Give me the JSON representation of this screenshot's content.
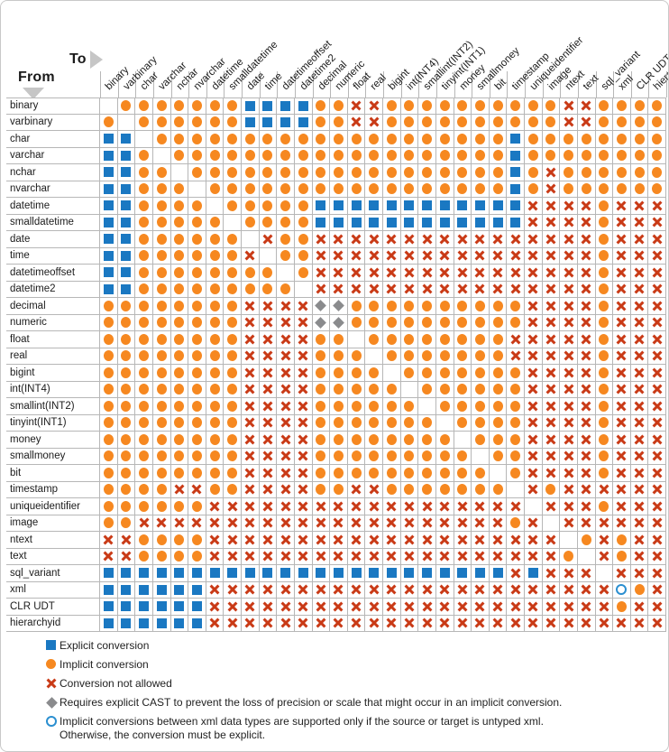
{
  "header": {
    "to_label": "To",
    "from_label": "From",
    "columns": [
      "binary",
      "varbinary",
      "char",
      "varchar",
      "nchar",
      "nvarchar",
      "datetime",
      "smalldatetime",
      "date",
      "time",
      "datetimeoffset",
      "datetime2",
      "decimal",
      "numeric",
      "float",
      "real",
      "bigint",
      "int(INT4)",
      "smallint(INT2)",
      "tinyint(INT1)",
      "money",
      "smallmoney",
      "bit",
      "timestamp",
      "uniqueidentifier",
      "image",
      "ntext",
      "text",
      "sql_variant",
      "xml",
      "CLR UDT",
      "hierarchyid"
    ]
  },
  "matrix": {
    "code_meaning": {
      "E": "explicit conversion",
      "I": "implicit conversion",
      "X": "conversion not allowed",
      "D": "requires explicit CAST",
      "O": "implicit only if untyped xml",
      ".": "same type (blank)"
    },
    "rows": [
      {
        "from": "binary",
        "cells": ".IIIIIIIEEEEIIXXIIIIIIIIIIXXIIII"
      },
      {
        "from": "varbinary",
        "cells": "I.IIIIIIEEEEIIXXIIIIIIIIIIXXIIII"
      },
      {
        "from": "char",
        "cells": "EE.IIIIIIIIIIIIIIIIIIIIEIIIIIIII"
      },
      {
        "from": "varchar",
        "cells": "EEI.IIIIIIIIIIIIIIIIIIIEIIIIIIII"
      },
      {
        "from": "nchar",
        "cells": "EEII.IIIIIIIIIIIIIIIIIIEIXIIIIII"
      },
      {
        "from": "nvarchar",
        "cells": "EEIII.IIIIIIIIIIIIIIIIIEIXIIIIII"
      },
      {
        "from": "datetime",
        "cells": "EEIIII.IIIIIEEEEEEEEEEEEXXXXIXXX"
      },
      {
        "from": "smalldatetime",
        "cells": "EEIIIII.IIIIEEEEEEEEEEEEXXXXIXXX"
      },
      {
        "from": "date",
        "cells": "EEIIIIII.XIIXXXXXXXXXXXXXXXXIXXX"
      },
      {
        "from": "time",
        "cells": "EEIIIIIIX.IIXXXXXXXXXXXXXXXXIXXX"
      },
      {
        "from": "datetimeoffset",
        "cells": "EEIIIIIIII.IXXXXXXXXXXXXXXXXIXXX"
      },
      {
        "from": "datetime2",
        "cells": "EEIIIIIIIII.XXXXXXXXXXXXXXXXIXXX"
      },
      {
        "from": "decimal",
        "cells": "IIIIIIIIXXXXDDIIIIIIIIIIXXXXIXXX"
      },
      {
        "from": "numeric",
        "cells": "IIIIIIIIXXXXDDIIIIIIIIIIXXXXIXXX"
      },
      {
        "from": "float",
        "cells": "IIIIIIIIXXXXII.IIIIIIIIXXXXXIXXX"
      },
      {
        "from": "real",
        "cells": "IIIIIIIIXXXXIII.IIIIIIIXXXXXIXXX"
      },
      {
        "from": "bigint",
        "cells": "IIIIIIIIXXXXIIII.IIIIIIIXXXXIXXX"
      },
      {
        "from": "int(INT4)",
        "cells": "IIIIIIIIXXXXIIIII.IIIIIIXXXXIXXX"
      },
      {
        "from": "smallint(INT2)",
        "cells": "IIIIIIIIXXXXIIIIII.IIIIIXXXXIXXX"
      },
      {
        "from": "tinyint(INT1)",
        "cells": "IIIIIIIIXXXXIIIIIII.IIIIXXXXIXXX"
      },
      {
        "from": "money",
        "cells": "IIIIIIIIXXXXIIIIIIII.IIIXXXXIXXX"
      },
      {
        "from": "smallmoney",
        "cells": "IIIIIIIIXXXXIIIIIIIII.IIXXXXIXXX"
      },
      {
        "from": "bit",
        "cells": "IIIIIIIIXXXXIIIIIIIIII.IXXXXIXXX"
      },
      {
        "from": "timestamp",
        "cells": "IIIIXXIIXXXXIIXXIIIIIII.XIXXXXXX"
      },
      {
        "from": "uniqueidentifier",
        "cells": "IIIIIIXXXXXXXXXXXXXXXXXX.XXXIXXX"
      },
      {
        "from": "image",
        "cells": "IIXXXXXXXXXXXXXXXXXXXXXIX.XXXXXX"
      },
      {
        "from": "ntext",
        "cells": "XXIIIIXXXXXXXXXXXXXXXXXXXX.IXIXX"
      },
      {
        "from": "text",
        "cells": "XXIIIIXXXXXXXXXXXXXXXXXXXXI.XIXX"
      },
      {
        "from": "sql_variant",
        "cells": "EEEEEEEEEEEEEEEEEEEEEEEXEXXX.XXX"
      },
      {
        "from": "xml",
        "cells": "EEEEEEXXXXXXXXXXXXXXXXXXXXXXXOIX"
      },
      {
        "from": "CLR UDT",
        "cells": "EEEEEEXXXXXXXXXXXXXXXXXXXXXXXIXX"
      },
      {
        "from": "hierarchyid",
        "cells": "EEEEEEXXXXXXXXXXXXXXXXXXXXXXXXXX"
      }
    ]
  },
  "legend": {
    "items": [
      {
        "symbol": "explicit-square",
        "text": "Explicit conversion"
      },
      {
        "symbol": "implicit-circle",
        "text": "Implicit conversion"
      },
      {
        "symbol": "not-allowed-x",
        "text": "Conversion not allowed"
      },
      {
        "symbol": "cast-diamond",
        "text": "Requires explicit CAST to prevent the loss of precision or scale that might occur in an implicit conversion."
      },
      {
        "symbol": "xml-open-circle",
        "text": "Implicit conversions between xml data types are supported only if the source or target is untyped xml.",
        "text2": "Otherwise, the conversion must be explicit."
      }
    ]
  },
  "colors": {
    "explicit_blue": "#1a78c2",
    "implicit_orange": "#f68820",
    "not_allowed_red": "#c93a16",
    "cast_gray": "#8a8b8d",
    "xml_circle_blue": "#2b8fd0",
    "grid_line": "#b7b7b7",
    "arrow_gray": "#c6c6c6"
  }
}
